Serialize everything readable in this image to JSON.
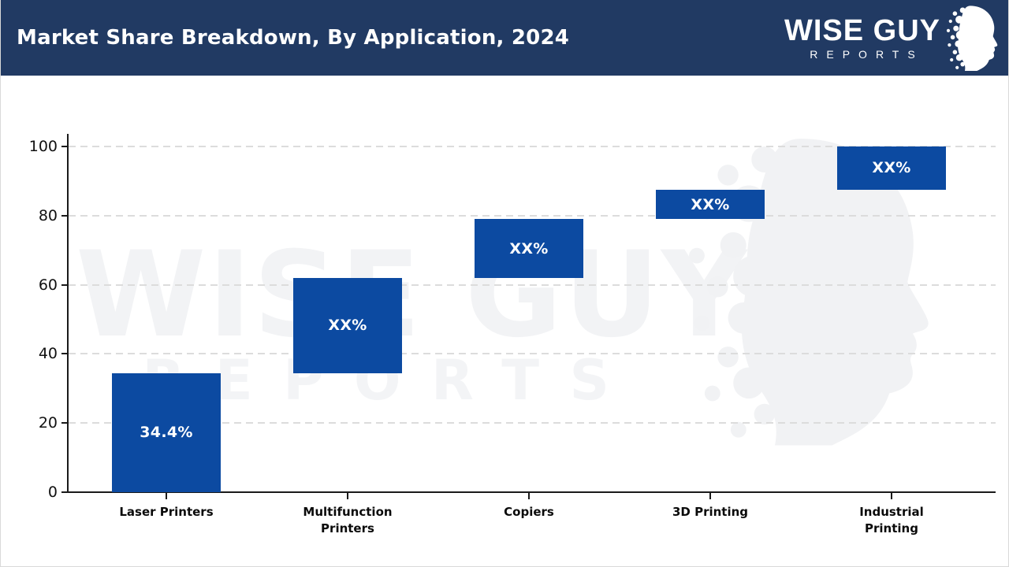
{
  "header": {
    "title": "Market Share Breakdown, By Application, 2024",
    "logo": {
      "name": "Wise Guy Reports",
      "line1": "WISE GUY",
      "line2": "REPORTS"
    }
  },
  "watermark": {
    "line1": "WISE GUY",
    "line2": "REPORTS"
  },
  "colors": {
    "header_bg": "#213a63",
    "bar": "#0c4aa1",
    "bar_label": "#ffffff",
    "grid": "#dcdcdc",
    "axis": "#1a1a1a",
    "watermark": "#f1f2f4"
  },
  "chart_data": {
    "type": "bar",
    "subtype": "waterfall",
    "title": "Market Share Breakdown, By Application, 2024",
    "categories": [
      "Laser Printers",
      "Multifunction\nPrinters",
      "Copiers",
      "3D Printing",
      "Industrial\nPrinting"
    ],
    "segments": [
      {
        "category": "Laser Printers",
        "start": 0,
        "end": 34.4,
        "label": "34.4%"
      },
      {
        "category": "Multifunction Printers",
        "start": 34.4,
        "end": 62,
        "label": "XX%"
      },
      {
        "category": "Copiers",
        "start": 62,
        "end": 79,
        "label": "XX%"
      },
      {
        "category": "3D Printing",
        "start": 79,
        "end": 87.5,
        "label": "XX%"
      },
      {
        "category": "Industrial Printing",
        "start": 87.5,
        "end": 100,
        "label": "XX%"
      }
    ],
    "ylim": [
      0,
      100
    ],
    "yticks": [
      0,
      20,
      40,
      60,
      80,
      100
    ],
    "xlabel": "",
    "ylabel": "",
    "grid": "horizontal-dashed",
    "legend": "none"
  }
}
